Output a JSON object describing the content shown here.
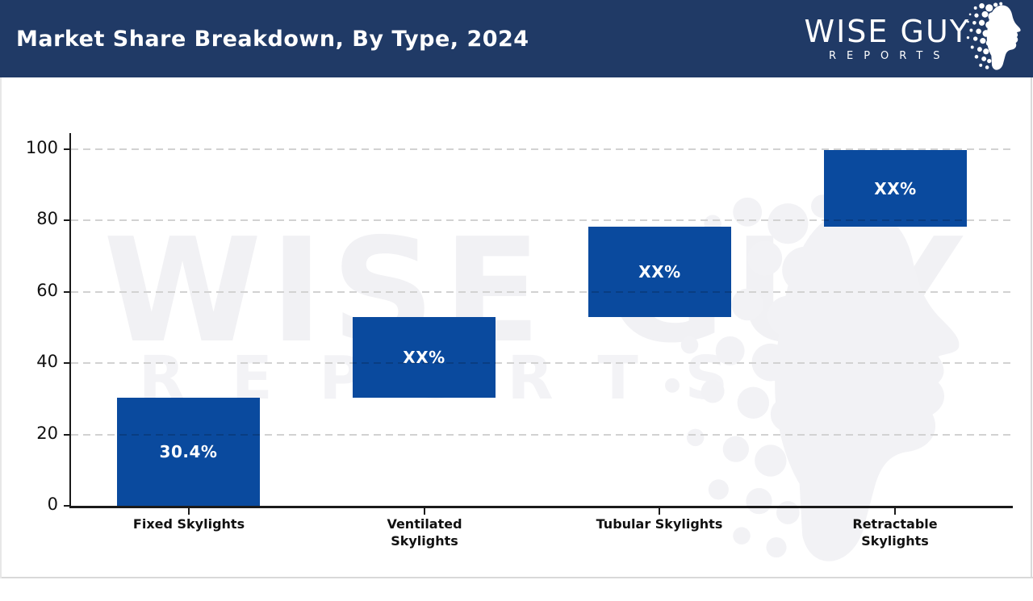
{
  "header": {
    "title": "Market Share Breakdown, By Type, 2024",
    "logo": {
      "wordmark": "WISE GUY",
      "subtext": "REPORTS"
    }
  },
  "watermark": {
    "line1": "WISE GUY",
    "line2": "REPORTS"
  },
  "colors": {
    "header_bg": "#203a66",
    "bar": "#0A4A9E",
    "bar_label": "#ffffff",
    "axis": "#1a1a1a",
    "gridline": "#d2d2d2",
    "watermark": "#f1f1f4",
    "frame_hairline": "#d9d9d9"
  },
  "chart_data": {
    "type": "bar",
    "subtype": "waterfall",
    "title": "Market Share Breakdown, By Type, 2024",
    "categories": [
      "Fixed Skylights",
      "Ventilated\nSkylights",
      "Tubular Skylights",
      "Retractable\nSkylights"
    ],
    "bars": [
      {
        "category": "Fixed Skylights",
        "label": "30.4%",
        "start": 0,
        "end": 30.4
      },
      {
        "category": "Ventilated Skylights",
        "label": "XX%",
        "start": 30.4,
        "end": 53.0
      },
      {
        "category": "Tubular Skylights",
        "label": "XX%",
        "start": 53.0,
        "end": 78.2
      },
      {
        "category": "Retractable Skylights",
        "label": "XX%",
        "start": 78.2,
        "end": 99.8
      }
    ],
    "xlabel": "",
    "ylabel": "",
    "ylim": [
      0,
      100
    ],
    "yticks": [
      0,
      20,
      40,
      60,
      80,
      100
    ],
    "grid": "horizontal dashed, drawn over bars",
    "legend": "none"
  }
}
